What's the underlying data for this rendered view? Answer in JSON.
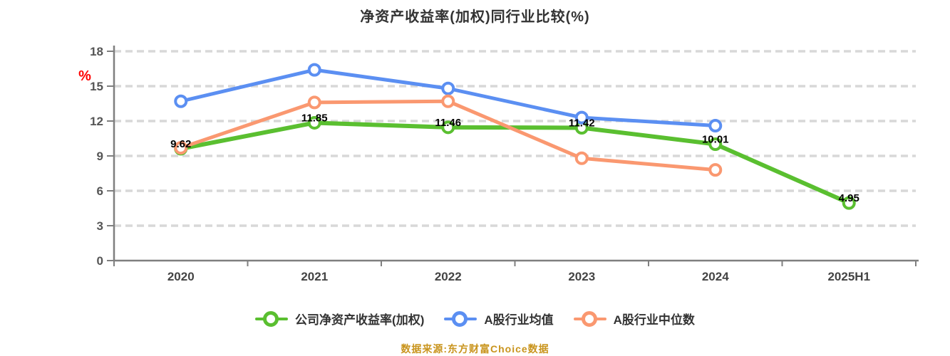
{
  "title": "净资产收益率(加权)同行业比较(%)",
  "footer": {
    "source_text": "数据来源:东方财富Choice数据"
  },
  "colors": {
    "grid": "#d8d8d8",
    "axis": "#7f7f7f",
    "tick_label": "#555555",
    "x_label": "#444444",
    "data_label": "#000000",
    "percent_unit": "#ff0000",
    "title": "#333333",
    "footer": "#c9941d"
  },
  "chart_data": {
    "type": "line",
    "title": "净资产收益率(加权)同行业比较(%)",
    "categories": [
      "2020",
      "2021",
      "2022",
      "2023",
      "2024",
      "2025H1"
    ],
    "y_unit": "%",
    "y_ticks": [
      0,
      3,
      6,
      9,
      12,
      15,
      18
    ],
    "ylim": [
      0,
      18
    ],
    "grid": "dashed-horizontal",
    "legend_position": "bottom",
    "series": [
      {
        "id": "company-roe",
        "name": "公司净资产收益率(加权)",
        "color": "#5abf30",
        "values": [
          9.62,
          11.85,
          11.46,
          11.42,
          10.01,
          4.95
        ],
        "labels": [
          "9.62",
          "11.85",
          "11.46",
          "11.42",
          "10.01",
          "4.95"
        ],
        "show_labels": true
      },
      {
        "id": "industry-average",
        "name": "A股行业均值",
        "color": "#5b8ff2",
        "values": [
          13.7,
          16.4,
          14.8,
          12.3,
          11.6,
          null
        ],
        "show_labels": false
      },
      {
        "id": "industry-median",
        "name": "A股行业中位数",
        "color": "#fa9870",
        "values": [
          9.7,
          13.6,
          13.7,
          8.8,
          7.8,
          null
        ],
        "show_labels": false
      }
    ]
  }
}
